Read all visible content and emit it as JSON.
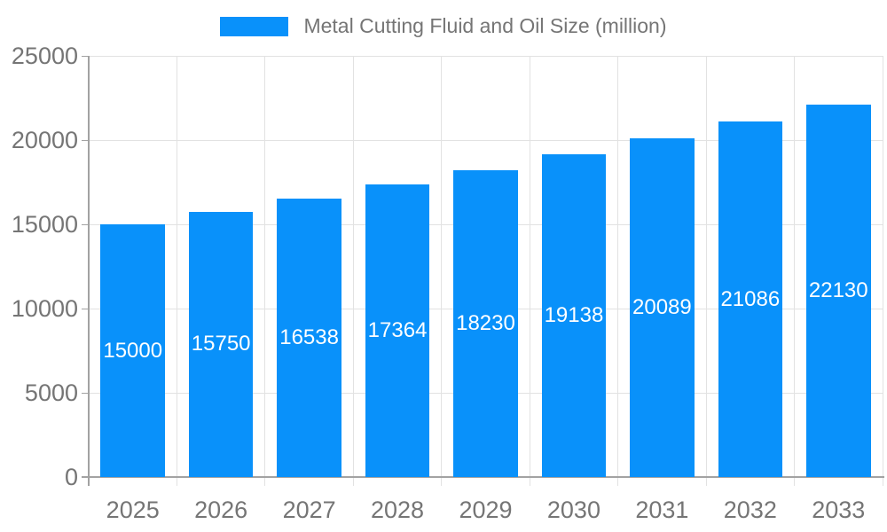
{
  "legend": {
    "label": "Metal Cutting Fluid and Oil Size (million)"
  },
  "chart_data": {
    "type": "bar",
    "title": "Metal Cutting Fluid and Oil Size (million)",
    "series_name": "Metal Cutting Fluid and Oil Size (million)",
    "categories": [
      "2025",
      "2026",
      "2027",
      "2028",
      "2029",
      "2030",
      "2031",
      "2032",
      "2033"
    ],
    "values": [
      15000,
      15750,
      16538,
      17364,
      18230,
      19138,
      20089,
      21086,
      22130
    ],
    "xlabel": "",
    "ylabel": "",
    "ylim": [
      0,
      25000
    ],
    "yticks": [
      0,
      5000,
      10000,
      15000,
      20000,
      25000
    ],
    "grid": true,
    "legend_position": "top",
    "colors": {
      "bar": "#0991fa",
      "bar_label": "#ffffff",
      "axis_text": "#757575",
      "axis_line": "#a2a2a2",
      "grid_line": "#e2e2e2",
      "background": "#ffffff"
    }
  }
}
